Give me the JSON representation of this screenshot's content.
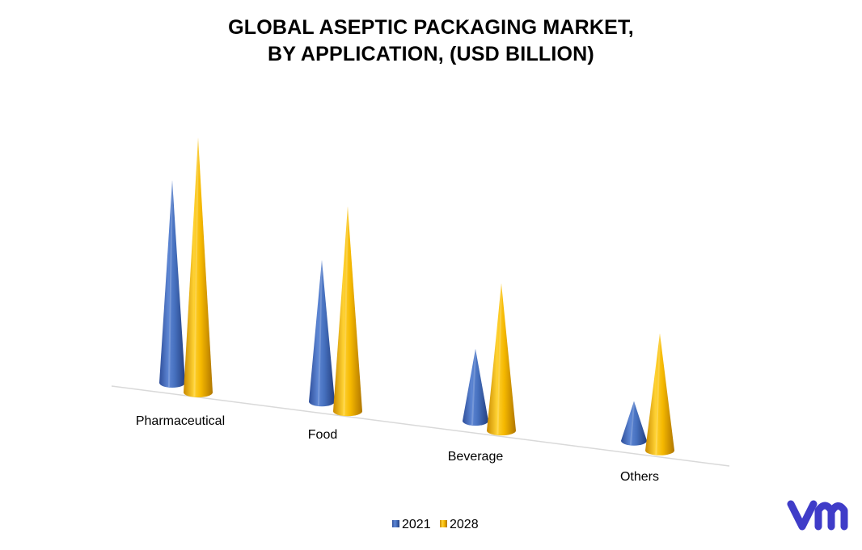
{
  "title": {
    "line1": "GLOBAL ASEPTIC PACKAGING MARKET,",
    "line2": "BY APPLICATION, (USD BILLION)"
  },
  "chart_data": {
    "type": "bar",
    "style": "3d-cone",
    "title": "GLOBAL ASEPTIC PACKAGING MARKET, BY APPLICATION, (USD BILLION)",
    "categories": [
      "Pharmaceutical",
      "Food",
      "Beverage",
      "Others"
    ],
    "series": [
      {
        "name": "2021",
        "color": "#4472C4",
        "values": [
          25.6,
          17.9,
          9.1,
          5.0
        ]
      },
      {
        "name": "2028",
        "color": "#FFC000",
        "values": [
          32.2,
          25.9,
          18.6,
          14.8
        ]
      }
    ],
    "grid": false,
    "legend": "bottom-center"
  },
  "legend": {
    "items": [
      {
        "label": "2021",
        "color": "#4472C4"
      },
      {
        "label": "2028",
        "color": "#FFC000"
      }
    ]
  },
  "brand": {
    "logo_icon": "vmr-logo-icon",
    "color": "#3F3CC8"
  }
}
